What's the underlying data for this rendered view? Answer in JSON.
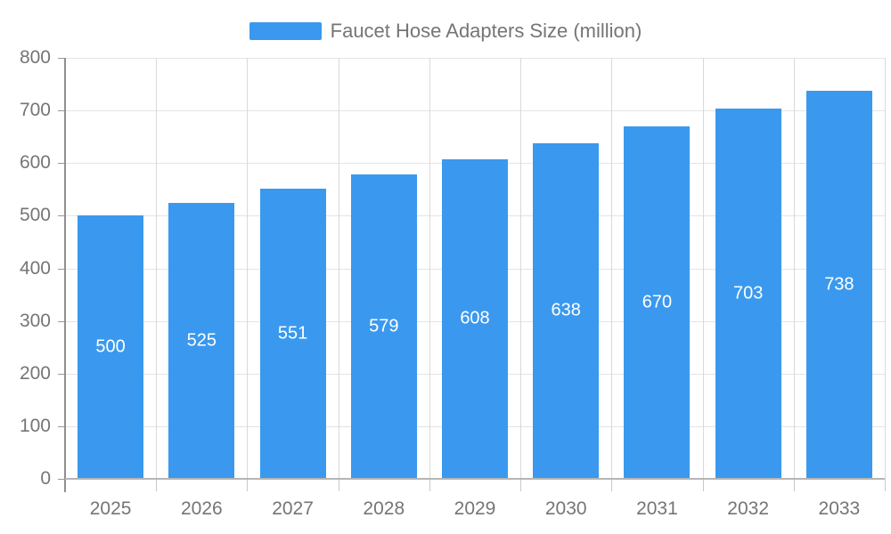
{
  "legend": {
    "label": "Faucet Hose Adapters Size (million)"
  },
  "chart_data": {
    "type": "bar",
    "title": "Faucet Hose Adapters Size (million)",
    "categories": [
      "2025",
      "2026",
      "2027",
      "2028",
      "2029",
      "2030",
      "2031",
      "2032",
      "2033"
    ],
    "series": [
      {
        "name": "Faucet Hose Adapters Size (million)",
        "values": [
          500,
          525,
          551,
          579,
          608,
          638,
          670,
          703,
          738
        ]
      }
    ],
    "xlabel": "",
    "ylabel": "",
    "ylim": [
      0,
      800
    ],
    "ytick_step": 100,
    "grid": true,
    "legend_position": "top",
    "bar_value_labels_inside": true,
    "colors": {
      "bar": "#3A99EE",
      "bar_label": "#FFFFFF",
      "axis_text": "#757575",
      "grid_horizontal": "#E4E4E4",
      "grid_vertical": "#D9D9D9",
      "y_axis_line": "#8F8F8F",
      "x_axis_line": "#B5B5B5",
      "y_tick": "#999999"
    }
  }
}
